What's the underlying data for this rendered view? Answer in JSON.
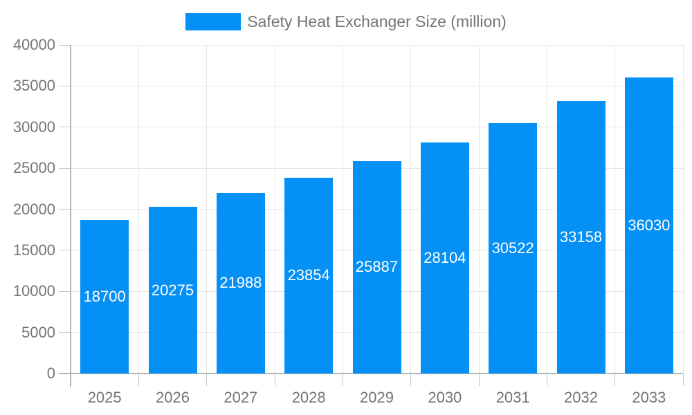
{
  "legend": {
    "label": "Safety Heat Exchanger Size (million)"
  },
  "chart_data": {
    "type": "bar",
    "title": "Safety Heat Exchanger Size (million)",
    "categories": [
      "2025",
      "2026",
      "2027",
      "2028",
      "2029",
      "2030",
      "2031",
      "2032",
      "2033"
    ],
    "series": [
      {
        "name": "Safety Heat Exchanger Size (million)",
        "color": "#0590F5",
        "values": [
          18700,
          20275,
          21988,
          23854,
          25887,
          28104,
          30522,
          33158,
          36030
        ]
      }
    ],
    "xlabel": "",
    "ylabel": "",
    "ylim": [
      0,
      40000
    ],
    "ytick_step": 5000,
    "ytick_labels": [
      "0",
      "5000",
      "10000",
      "15000",
      "20000",
      "25000",
      "30000",
      "35000",
      "40000"
    ],
    "grid": true,
    "legend_position": "top",
    "bar_labels": true,
    "bar_label_color": "#ffffff"
  },
  "colors": {
    "bar": "#0590F5",
    "axis_line": "#b3b3b3",
    "tick": "#c6c6c6",
    "gridline": "#e6e6e6",
    "axis_text": "#757575",
    "bar_label": "#ffffff",
    "background": "#ffffff"
  }
}
